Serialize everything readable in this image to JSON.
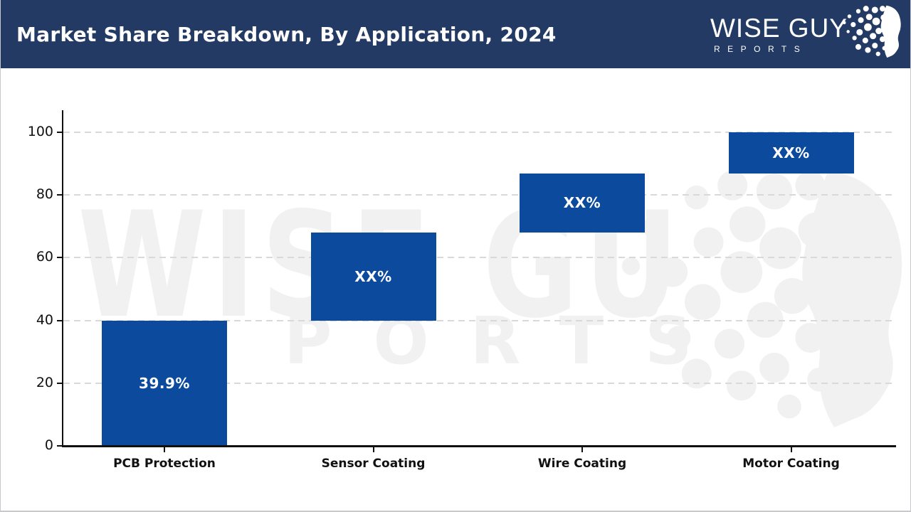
{
  "header": {
    "title": "Market Share Breakdown, By Application, 2024",
    "logo": {
      "line1": "WISE GUY",
      "line2": "REPORTS"
    }
  },
  "watermark": {
    "line1": "WISE GU",
    "line2": "PORTS"
  },
  "colors": {
    "header_bg": "#233a64",
    "bar": "#0c4a9e",
    "grid": "#d9d9d9",
    "axis": "#111111",
    "watermark": "#f1f1f2"
  },
  "chart_data": {
    "type": "bar",
    "subtype": "waterfall",
    "title": "Market Share Breakdown, By Application, 2024",
    "categories": [
      "PCB Protection",
      "Sensor Coating",
      "Wire Coating",
      "Motor Coating"
    ],
    "segments": [
      {
        "start": 0,
        "end": 39.9
      },
      {
        "start": 39.9,
        "end": 68.0
      },
      {
        "start": 68.0,
        "end": 86.9
      },
      {
        "start": 86.9,
        "end": 100.0
      }
    ],
    "labels": [
      "39.9%",
      "XX%",
      "XX%",
      "XX%"
    ],
    "yticks": [
      0,
      20,
      40,
      60,
      80,
      100
    ],
    "ylim": [
      0,
      100
    ],
    "xlabel": "",
    "ylabel": "",
    "grid": "horizontal-dashed",
    "legend": "none"
  }
}
